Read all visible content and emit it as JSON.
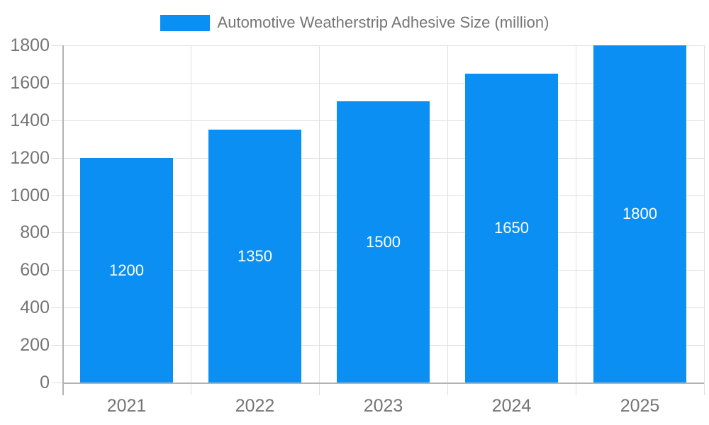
{
  "legend": {
    "label": "Automotive Weatherstrip Adhesive Size (million)"
  },
  "colors": {
    "bar": "#0b8ff2",
    "grid": "#e0e0e0",
    "axis": "#b3b3b3",
    "text_gray": "#757575",
    "bar_label": "#ffffff",
    "background": "#ffffff"
  },
  "chart_data": {
    "type": "bar",
    "title": "Automotive Weatherstrip Adhesive Size (million)",
    "categories": [
      "2021",
      "2022",
      "2023",
      "2024",
      "2025"
    ],
    "values": [
      1200,
      1350,
      1500,
      1650,
      1800
    ],
    "xlabel": "",
    "ylabel": "",
    "ylim": [
      0,
      1800
    ],
    "ytick_step": 200,
    "yticks": [
      0,
      200,
      400,
      600,
      800,
      1000,
      1200,
      1400,
      1600,
      1800
    ],
    "grid": true,
    "legend_position": "top-center",
    "data_labels": "centered inside bars, white"
  }
}
